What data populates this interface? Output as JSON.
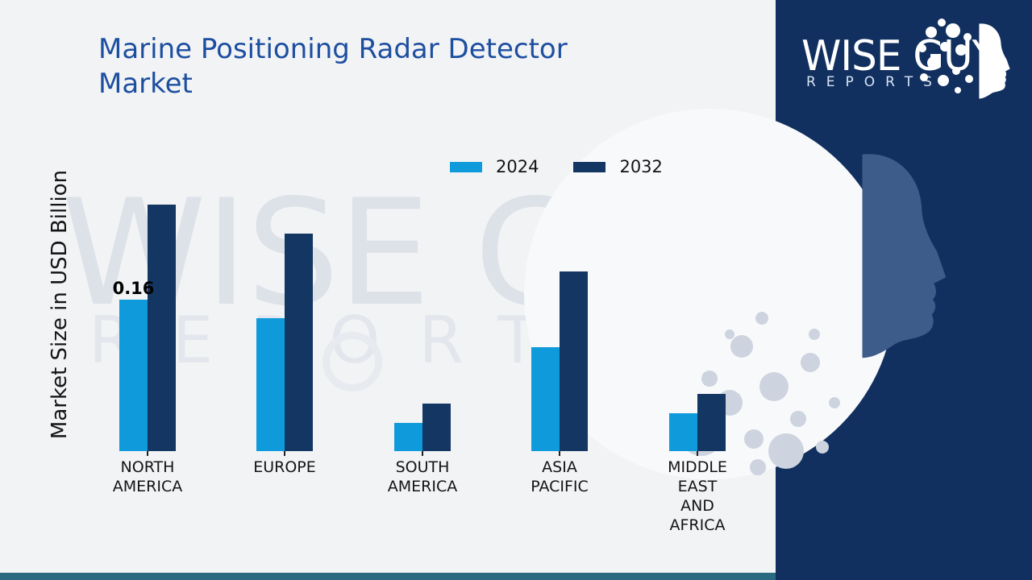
{
  "header": {
    "title_line1": "Marine Positioning Radar Detector",
    "title_line2": "Market"
  },
  "logo": {
    "line1": "WISE GUY",
    "line2": "REPORTS"
  },
  "watermark": {
    "line1": "WISE GUY",
    "line2": "REPORTS"
  },
  "colors": {
    "title_blue": "#1d4fa0",
    "series_2024_blue": "#0f9bdb",
    "series_2032_navy": "#143663",
    "panel_navy": "#12305f",
    "footer_teal": "#2a6a80",
    "face_silhouette_blue": "#3e5c8a",
    "circle_dot_gray": "#cdd4df",
    "background_dot_gray": "#dfe3ea"
  },
  "chart_data": {
    "type": "bar",
    "title": "Marine Positioning Radar Detector Market",
    "xlabel": "",
    "ylabel": "Market Size in USD Billion",
    "categories": [
      "NORTH AMERICA",
      "EUROPE",
      "SOUTH AMERICA",
      "ASIA PACIFIC",
      "MIDDLE EAST AND AFRICA"
    ],
    "category_label_lines": [
      [
        "NORTH",
        "AMERICA"
      ],
      [
        "EUROPE"
      ],
      [
        "SOUTH",
        "AMERICA"
      ],
      [
        "ASIA",
        "PACIFIC"
      ],
      [
        "MIDDLE",
        "EAST",
        "AND",
        "AFRICA"
      ]
    ],
    "series": [
      {
        "name": "2024",
        "color": "#0f9bdb",
        "values": [
          0.16,
          0.14,
          0.03,
          0.11,
          0.04
        ]
      },
      {
        "name": "2032",
        "color": "#143663",
        "values": [
          0.26,
          0.23,
          0.05,
          0.19,
          0.06
        ]
      }
    ],
    "bar_labels": [
      {
        "series": "2024",
        "category_index": 0,
        "text": "0.16"
      }
    ],
    "unit": "USD Billion",
    "ylim": [
      0,
      0.28
    ],
    "grid": false,
    "legend_position": "top-center"
  }
}
